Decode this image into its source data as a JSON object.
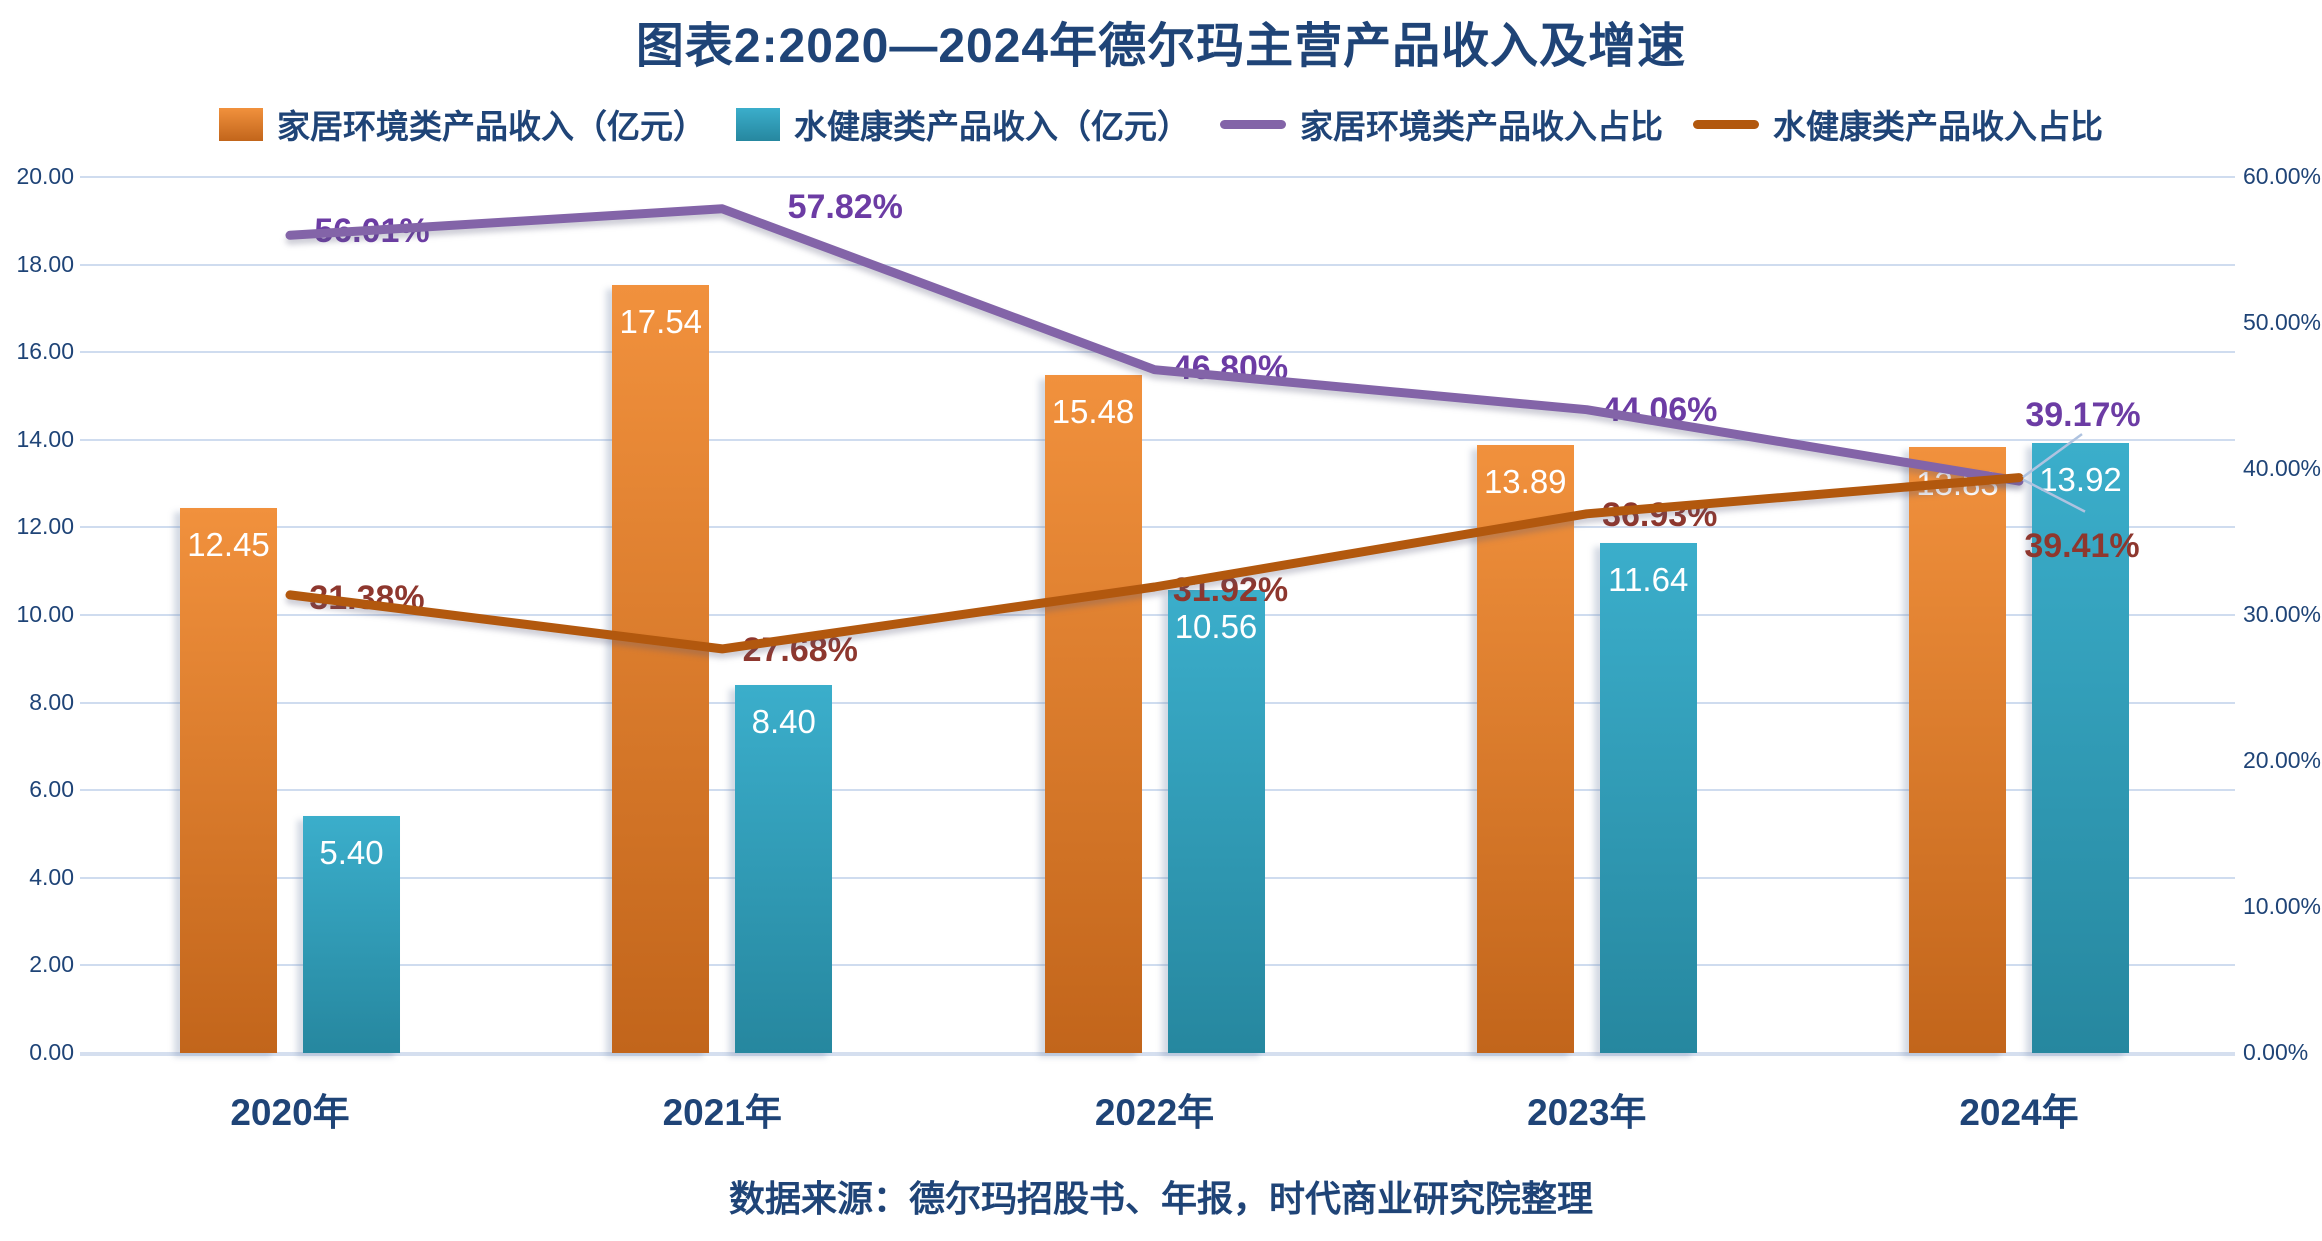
{
  "chart_data": {
    "type": "bar+line",
    "title": "图表2:2020—2024年德尔玛主营产品收入及增速",
    "source": "数据来源：德尔玛招股书、年报，时代商业研究院整理",
    "categories": [
      "2020年",
      "2021年",
      "2022年",
      "2023年",
      "2024年"
    ],
    "bar_series": [
      {
        "name": "家居环境类产品收入（亿元）",
        "color": "#E8822E",
        "color_top": "#F1913D",
        "color_bottom": "#C2651B",
        "values": [
          12.45,
          17.54,
          15.48,
          13.89,
          13.83
        ]
      },
      {
        "name": "水健康类产品收入（亿元）",
        "color": "#2EA2C2",
        "color_top": "#3BAECB",
        "color_bottom": "#26879F",
        "values": [
          5.4,
          8.4,
          10.56,
          11.64,
          13.92
        ]
      }
    ],
    "line_series": [
      {
        "name": "家居环境类产品收入占比",
        "color": "#8364A8",
        "label_color": "#6C3CA4",
        "values": [
          56.01,
          57.82,
          46.8,
          44.06,
          39.17
        ]
      },
      {
        "name": "水健康类产品收入占比",
        "color": "#B2580E",
        "label_color": "#8E372E",
        "values": [
          31.38,
          27.68,
          31.92,
          36.93,
          39.41
        ]
      }
    ],
    "left_axis": {
      "min": 0,
      "max": 20,
      "step": 2,
      "ticks": [
        "0.00",
        "2.00",
        "4.00",
        "6.00",
        "8.00",
        "10.00",
        "12.00",
        "14.00",
        "16.00",
        "18.00",
        "20.00"
      ]
    },
    "right_axis": {
      "min": 0,
      "max": 60,
      "step": 10,
      "ticks": [
        "0.00%",
        "10.00%",
        "20.00%",
        "30.00%",
        "40.00%",
        "50.00%",
        "60.00%"
      ]
    },
    "legend_position": "top",
    "grid": true
  },
  "colors": {
    "background": "#FFFFFF",
    "title_text": "#1F4477",
    "axis_text": "#1F4477",
    "gridline": "#CFDCEF",
    "bar_label_text": "#FFFFFF",
    "leader_line": "#AFC3E0"
  }
}
